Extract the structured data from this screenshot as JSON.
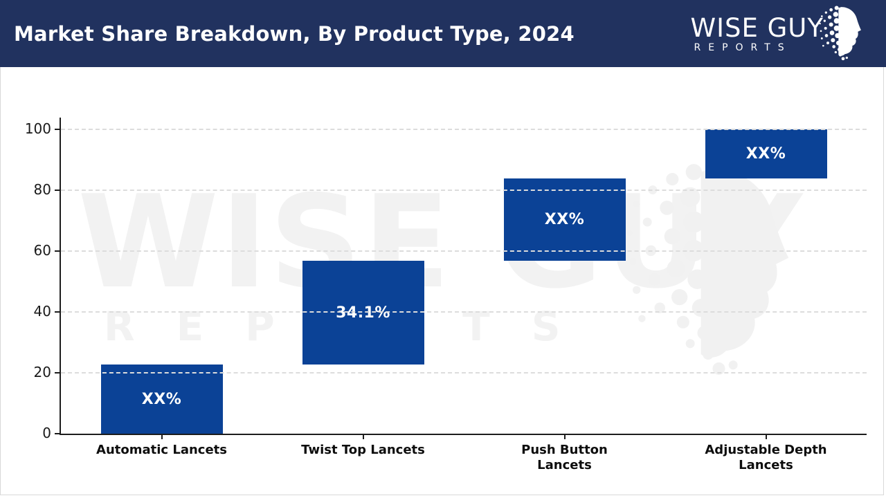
{
  "header": {
    "title": "Market Share Breakdown, By Product Type, 2024",
    "bg_color": "#21325f",
    "logo": {
      "wordmark": "WISE GUY",
      "subtitle": "REPORTS"
    }
  },
  "watermark": {
    "wordmark": "WISE GUY",
    "subtitle": "REPORTS"
  },
  "chart_data": {
    "type": "bar",
    "subtype": "floating-waterfall",
    "title": "Market Share Breakdown, By Product Type, 2024",
    "categories": [
      "Automatic Lancets",
      "Twist Top Lancets",
      "Push Button\nLancets",
      "Adjustable Depth\nLancets"
    ],
    "series": [
      {
        "name": "Market share (%)",
        "segments": [
          {
            "category": "Automatic Lancets",
            "start": 0,
            "end": 22.7,
            "label": "XX%"
          },
          {
            "category": "Twist Top Lancets",
            "start": 22.7,
            "end": 56.8,
            "label": "34.1%"
          },
          {
            "category": "Push Button Lancets",
            "start": 56.8,
            "end": 83.9,
            "label": "XX%"
          },
          {
            "category": "Adjustable Depth Lancets",
            "start": 83.9,
            "end": 100,
            "label": "XX%"
          }
        ]
      }
    ],
    "xlabel": "",
    "ylabel": "",
    "ylim": [
      0,
      104
    ],
    "yticks": [
      0,
      20,
      40,
      60,
      80,
      100
    ],
    "grid": true,
    "grid_style": "dashed",
    "legend": false,
    "bar_color": "#0b4296",
    "bar_label_color": "#ffffff",
    "axis_color": "#1c1c1c",
    "gridline_color": "#dcdcdc",
    "tick_label_color": "#1a1a1a",
    "category_label_color": "#0d0d0d"
  }
}
